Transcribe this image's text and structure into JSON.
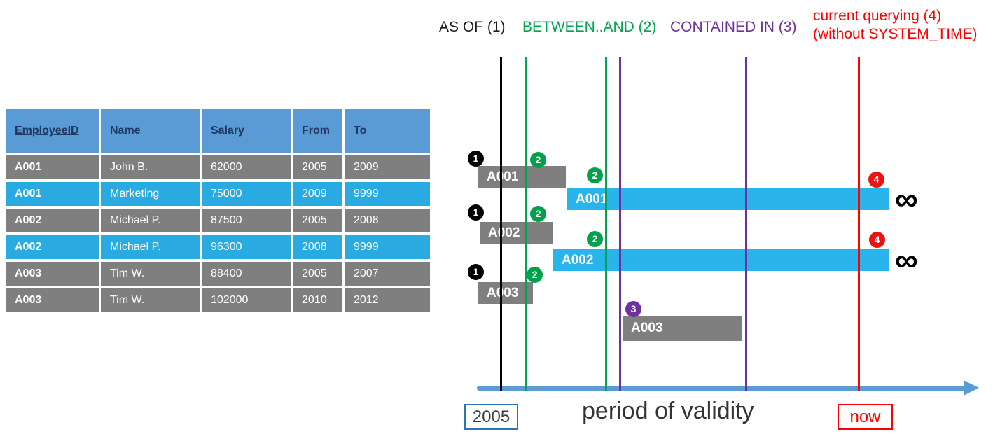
{
  "table": {
    "headers": [
      "EmployeeID",
      "Name",
      "Salary",
      "From",
      "To"
    ],
    "rows": [
      {
        "cells": [
          "A001",
          "John B.",
          "62000",
          "2005",
          "2009"
        ],
        "highlight": false
      },
      {
        "cells": [
          "A001",
          "Marketing",
          "75000",
          "2009",
          "9999"
        ],
        "highlight": true
      },
      {
        "cells": [
          "A002",
          "Michael P.",
          "87500",
          "2005",
          "2008"
        ],
        "highlight": false
      },
      {
        "cells": [
          "A002",
          "Michael P.",
          "96300",
          "2008",
          "9999"
        ],
        "highlight": true
      },
      {
        "cells": [
          "A003",
          "Tim W.",
          "88400",
          "2005",
          "2007"
        ],
        "highlight": false
      },
      {
        "cells": [
          "A003",
          "Tim W.",
          "102000",
          "2010",
          "2012"
        ],
        "highlight": false
      }
    ]
  },
  "legend": {
    "as_of": "AS OF (1)",
    "between_and": "BETWEEN..AND (2)",
    "contained_in": "CONTAINED IN (3)",
    "current_querying_line1": "current querying (4)",
    "current_querying_line2": "(without SYSTEM_TIME)"
  },
  "timeline": {
    "bars": [
      {
        "label": "A001",
        "style": "gray"
      },
      {
        "label": "A001",
        "style": "cyan"
      },
      {
        "label": "A002",
        "style": "gray"
      },
      {
        "label": "A002",
        "style": "cyan"
      },
      {
        "label": "A003",
        "style": "gray"
      },
      {
        "label": "A003",
        "style": "gray"
      }
    ],
    "badges": [
      "1",
      "2",
      "2",
      "4",
      "1",
      "2",
      "2",
      "4",
      "1",
      "2",
      "3"
    ],
    "infinity": "∞",
    "start_label": "2005",
    "axis_label": "period of validity",
    "now_label": "now"
  },
  "colors": {
    "table_header_blue": "#5B9BD5",
    "row_gray": "#7F7F7F",
    "row_cyan": "#29ABE2",
    "bar_cyan": "#29B5EC",
    "green": "#00A550",
    "purple": "#7030A0",
    "red": "#FF0000",
    "black": "#000000",
    "axis_blue": "#5B9BD5",
    "year_box_border": "#2E75B6"
  }
}
